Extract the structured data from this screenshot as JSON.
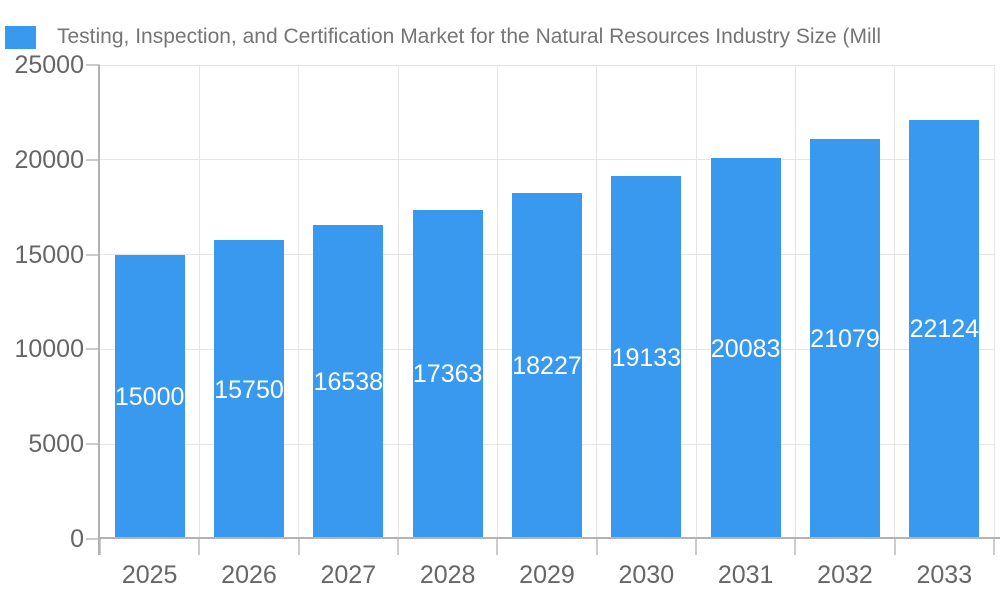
{
  "chart_data": {
    "type": "bar",
    "title": "Testing, Inspection, and Certification Market for the Natural Resources Industry Size (Mill",
    "categories": [
      "2025",
      "2026",
      "2027",
      "2028",
      "2029",
      "2030",
      "2031",
      "2032",
      "2033"
    ],
    "values": [
      15000,
      15750,
      16538,
      17363,
      18227,
      19133,
      20083,
      21079,
      22124
    ],
    "xlabel": "",
    "ylabel": "",
    "ylim": [
      0,
      25000
    ],
    "y_ticks": [
      0,
      5000,
      10000,
      15000,
      20000,
      25000
    ],
    "grid": true,
    "legend_position": "top-left",
    "value_labels_inside_bars": true
  },
  "colors": {
    "bar": "#3899ee",
    "value_label": "#ffffff",
    "gridline": "#e6e6e6",
    "axis_line": "#b3b3b3",
    "tick": "#cccccc",
    "axis_text": "#666666",
    "title_text": "#757575",
    "background": "#ffffff"
  }
}
